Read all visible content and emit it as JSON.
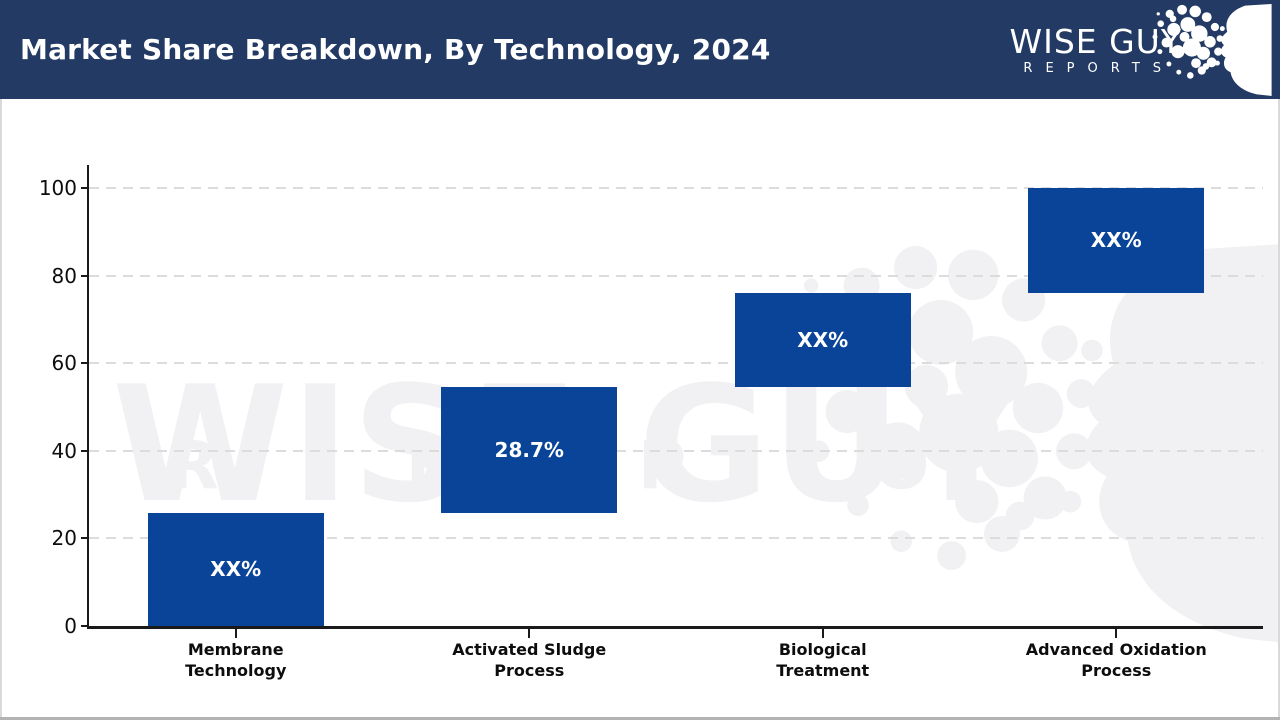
{
  "header": {
    "title": "Market Share Breakdown, By Technology, 2024",
    "logo": {
      "name": "WISE GUY",
      "subname": "REPORTS"
    }
  },
  "watermark": {
    "name": "WISE GUY",
    "reports": "R E P O R T S"
  },
  "chart_data": {
    "type": "bar",
    "variant": "waterfall",
    "title": "Market Share Breakdown, By Technology, 2024",
    "categories": [
      "Membrane\nTechnology",
      "Activated Sludge\nProcess",
      "Biological\nTreatment",
      "Advanced Oxidation\nProcess"
    ],
    "segments": [
      {
        "category": "Membrane Technology",
        "start": 0,
        "end": 25.9,
        "label": "XX%"
      },
      {
        "category": "Activated Sludge Process",
        "start": 25.9,
        "end": 54.6,
        "label": "28.7%"
      },
      {
        "category": "Biological Treatment",
        "start": 54.6,
        "end": 76.1,
        "label": "XX%"
      },
      {
        "category": "Advanced Oxidation Process",
        "start": 76.1,
        "end": 100,
        "label": "XX%"
      }
    ],
    "xlabel": "",
    "ylabel": "",
    "ylim": [
      0,
      100
    ],
    "yticks": [
      0,
      20,
      40,
      60,
      80,
      100
    ],
    "grid": {
      "horizontal": true,
      "style": "dashed",
      "color": "#dcdcdc"
    },
    "legend": null,
    "bar_color": "#0a4499",
    "bar_label_color": "#ffffff"
  },
  "colors": {
    "header_bg": "#223a64",
    "bar_blue": "#0a4499",
    "watermark": "#f1f1f4",
    "axis": "#1a1a1a",
    "page_bg": "#ffffff"
  }
}
